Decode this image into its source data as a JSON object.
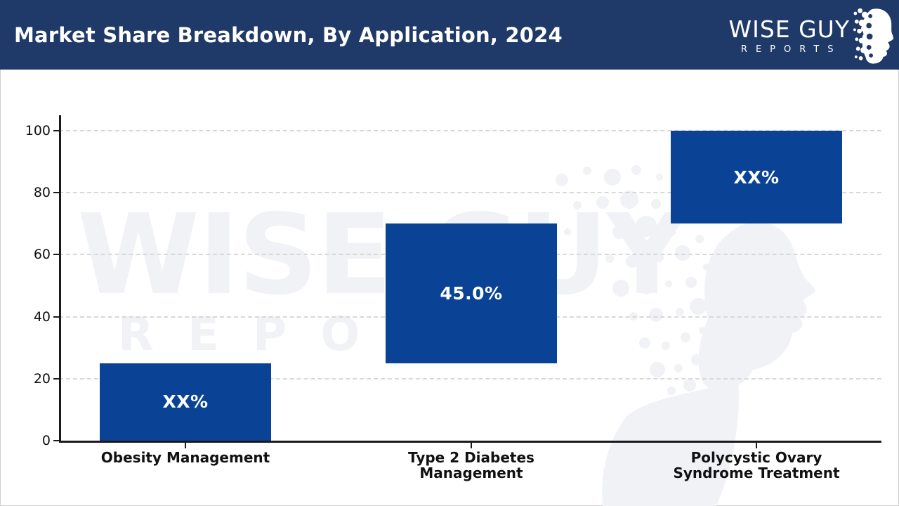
{
  "header": {
    "title": "Market Share Breakdown, By Application, 2024",
    "logo": {
      "line1": "WISE GUY",
      "line2": "REPORTS"
    }
  },
  "watermark": {
    "line1": "WISE GUY",
    "line2": "REPORTS"
  },
  "chart_data": {
    "type": "bar",
    "subtype": "waterfall",
    "title": "Market Share Breakdown, By Application, 2024",
    "categories": [
      "Obesity Management",
      "Type 2 Diabetes Management",
      "Polycystic Ovary Syndrome Treatment"
    ],
    "categories_wrapped": [
      [
        "Obesity Management"
      ],
      [
        "Type 2 Diabetes",
        "Management"
      ],
      [
        "Polycystic Ovary",
        "Syndrome Treatment"
      ]
    ],
    "segments": [
      {
        "category": "Obesity Management",
        "start": 0,
        "end": 25,
        "delta": 25,
        "label": "XX%"
      },
      {
        "category": "Type 2 Diabetes Management",
        "start": 25,
        "end": 70,
        "delta": 45,
        "label": "45.0%"
      },
      {
        "category": "Polycystic Ovary Syndrome Treatment",
        "start": 70,
        "end": 100,
        "delta": 30,
        "label": "XX%"
      }
    ],
    "yticks": [
      0,
      20,
      40,
      60,
      80,
      100
    ],
    "ylim": [
      0,
      105
    ],
    "grid": {
      "horizontal": true,
      "style": "dashed"
    },
    "legend": null,
    "colors": {
      "bar": "#0a4296",
      "bar_label": "#ffffff",
      "axis": "#1a1a1a",
      "gridline": "#d8d8d8",
      "header_bg": "#1f3a68",
      "watermark": "#f1f2f5"
    }
  }
}
